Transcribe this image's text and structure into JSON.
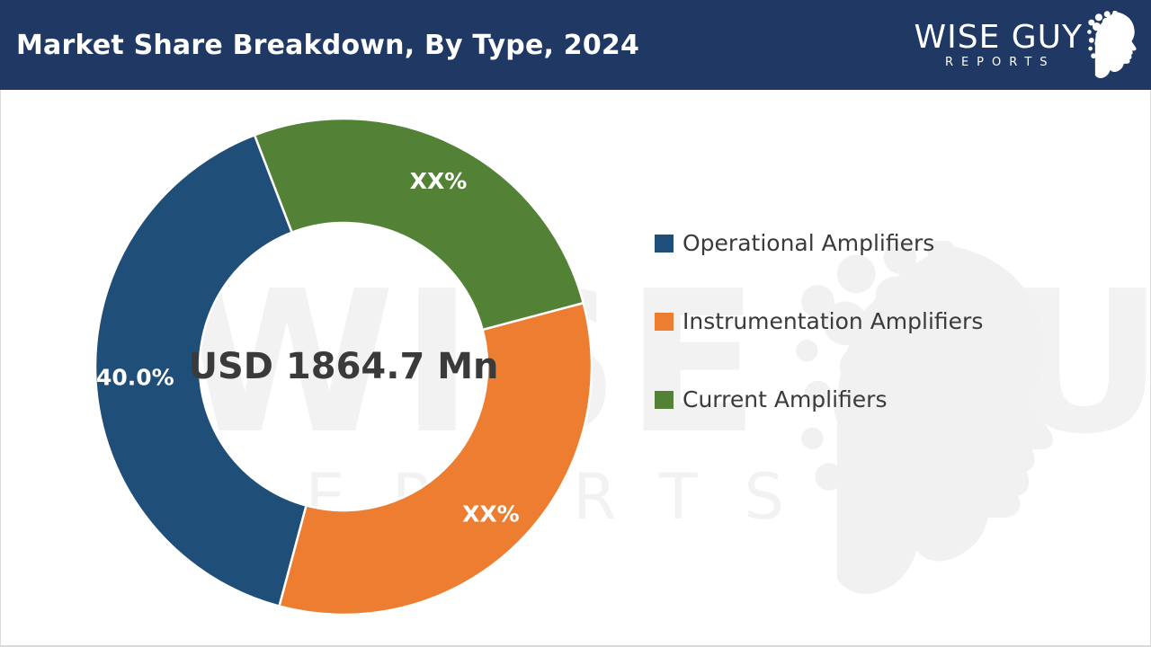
{
  "header": {
    "title": "Market Share Breakdown, By Type, 2024",
    "logo": {
      "line1": "WISE GUY",
      "line2": "REPORTS"
    }
  },
  "watermark": {
    "line1": "WISE GUY",
    "line2": "REPORTS"
  },
  "chart_data": {
    "type": "pie",
    "subtype": "donut",
    "title": "Market Share Breakdown, By Type, 2024",
    "center_label": "USD 1864.7 Mn",
    "start_angle_deg": 111,
    "direction": "counterclockwise",
    "inner_radius_ratio": 0.58,
    "legend_position": "right",
    "series": [
      {
        "name": "Operational Amplifiers",
        "value": 40.0,
        "label": "40.0%",
        "color": "#1F4E79"
      },
      {
        "name": "Instrumentation Amplifiers",
        "value": 33.3,
        "label": "XX%",
        "color": "#ED7D31"
      },
      {
        "name": "Current Amplifiers",
        "value": 26.7,
        "label": "XX%",
        "color": "#538135"
      }
    ]
  },
  "colors": {
    "header_bg": "#1F3864",
    "slice_separator": "#FFFFFF",
    "center_text": "#3A3A3A",
    "legend_text": "#3A3A3A",
    "watermark": "#F2F2F3"
  }
}
